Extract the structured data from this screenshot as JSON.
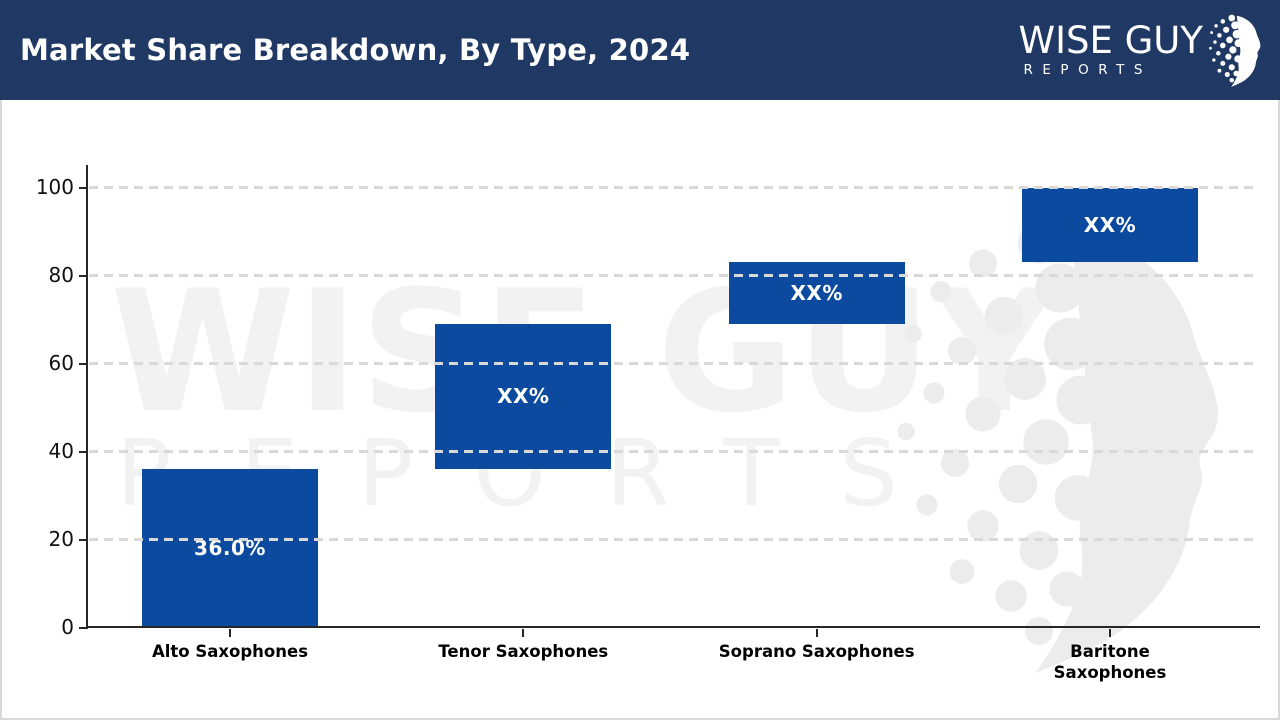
{
  "header": {
    "title": "Market Share Breakdown, By Type, 2024",
    "logo": {
      "brand": "WISE GUY",
      "tagline": "REPORTS"
    }
  },
  "watermark": {
    "brand": "WISE GUY",
    "tagline": "REPORTS"
  },
  "colors": {
    "header_bg": "#1f3864",
    "bar_fill": "#0b4a9e",
    "bar_label": "#ffffff",
    "gridline": "#d9d9d9",
    "axis": "#262626",
    "tick_text": "#111111",
    "watermark_text": "#f2f2f2"
  },
  "chart_data": {
    "type": "bar",
    "subtype": "floating-waterfall",
    "title": "Market Share Breakdown, By Type, 2024",
    "categories": [
      "Alto Saxophones",
      "Tenor Saxophones",
      "Soprano Saxophones",
      "Baritone\nSaxophones"
    ],
    "series": [
      {
        "name": "Market share by type",
        "segments": [
          {
            "category": "Alto Saxophones",
            "start": 0,
            "end": 36,
            "value_label": "36.0%"
          },
          {
            "category": "Tenor Saxophones",
            "start": 36,
            "end": 69,
            "value_label": "XX%"
          },
          {
            "category": "Soprano Saxophones",
            "start": 69,
            "end": 83,
            "value_label": "XX%"
          },
          {
            "category": "Baritone Saxophones",
            "start": 83,
            "end": 100,
            "value_label": "XX%"
          }
        ]
      }
    ],
    "ylim": [
      0,
      100
    ],
    "yticks": [
      0,
      20,
      40,
      60,
      80,
      100
    ],
    "grid": "horizontal-dashed",
    "legend": "none"
  }
}
